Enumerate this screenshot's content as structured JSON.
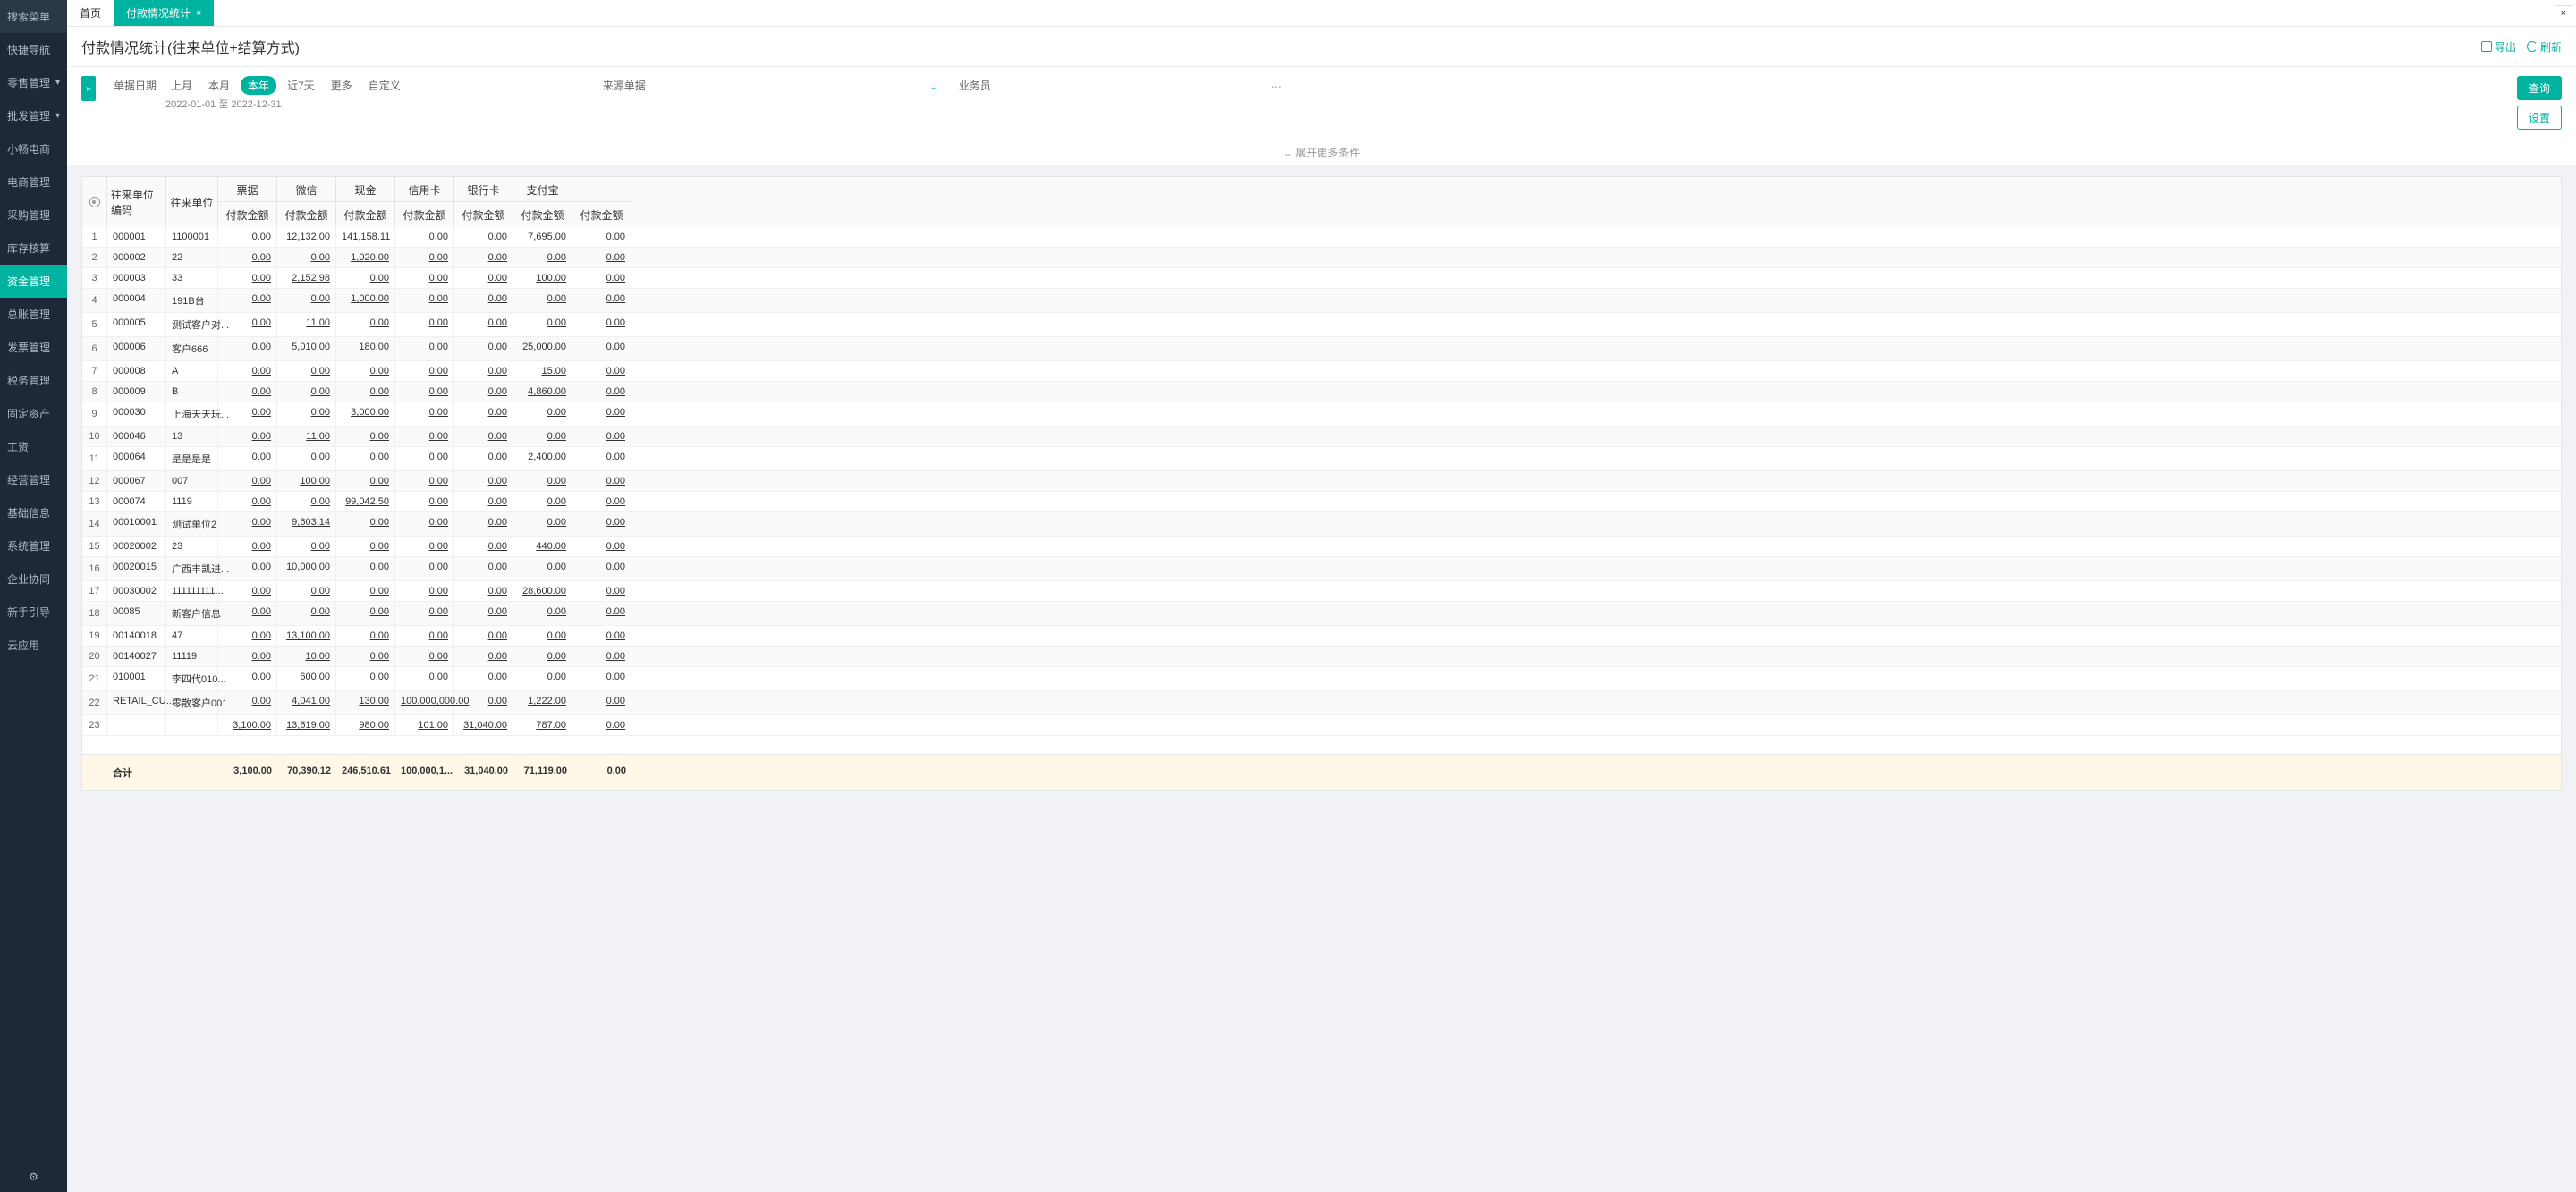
{
  "sidebar": {
    "items": [
      {
        "label": "搜索菜单",
        "expandable": false
      },
      {
        "label": "快捷导航",
        "expandable": false
      },
      {
        "label": "零售管理",
        "expandable": true
      },
      {
        "label": "批发管理",
        "expandable": true
      },
      {
        "label": "小畅电商",
        "expandable": false
      },
      {
        "label": "电商管理",
        "expandable": false
      },
      {
        "label": "采购管理",
        "expandable": false
      },
      {
        "label": "库存核算",
        "expandable": false
      },
      {
        "label": "资金管理",
        "expandable": false,
        "active": true
      },
      {
        "label": "总账管理",
        "expandable": false
      },
      {
        "label": "发票管理",
        "expandable": false
      },
      {
        "label": "税务管理",
        "expandable": false
      },
      {
        "label": "固定资产",
        "expandable": false
      },
      {
        "label": "工资",
        "expandable": false
      },
      {
        "label": "经营管理",
        "expandable": false
      },
      {
        "label": "基础信息",
        "expandable": false
      },
      {
        "label": "系统管理",
        "expandable": false
      },
      {
        "label": "企业协同",
        "expandable": false
      },
      {
        "label": "新手引导",
        "expandable": false
      },
      {
        "label": "云应用",
        "expandable": false
      }
    ]
  },
  "tabs": {
    "home": "首页",
    "active": "付款情况统计",
    "close_all": "×"
  },
  "page": {
    "title": "付款情况统计(往来单位+结算方式)",
    "export": "导出",
    "refresh": "刷新"
  },
  "filters": {
    "date_label": "单据日期",
    "presets": [
      "上月",
      "本月",
      "本年",
      "近7天",
      "更多",
      "自定义"
    ],
    "active_preset": "本年",
    "date_range": "2022-01-01 至 2022-12-31",
    "source_label": "来源单据",
    "salesperson_label": "业务员",
    "query": "查询",
    "settings": "设置",
    "expand_more": "展开更多条件"
  },
  "table": {
    "headers": {
      "code": "往来单位编码",
      "unit": "往来单位",
      "groups": [
        "票据",
        "微信",
        "现金",
        "信用卡",
        "银行卡",
        "支付宝",
        ""
      ],
      "sub": "付款金额"
    },
    "rows": [
      {
        "idx": "1",
        "code": "000001",
        "unit": "1100001",
        "v": [
          "0.00",
          "12,132.00",
          "141,158.11",
          "0.00",
          "0.00",
          "7,695.00",
          "0.00"
        ]
      },
      {
        "idx": "2",
        "code": "000002",
        "unit": "22",
        "v": [
          "0.00",
          "0.00",
          "1,020.00",
          "0.00",
          "0.00",
          "0.00",
          "0.00"
        ]
      },
      {
        "idx": "3",
        "code": "000003",
        "unit": "33",
        "v": [
          "0.00",
          "2,152.98",
          "0.00",
          "0.00",
          "0.00",
          "100.00",
          "0.00"
        ]
      },
      {
        "idx": "4",
        "code": "000004",
        "unit": "191B台",
        "v": [
          "0.00",
          "0.00",
          "1,000.00",
          "0.00",
          "0.00",
          "0.00",
          "0.00"
        ]
      },
      {
        "idx": "5",
        "code": "000005",
        "unit": "测试客户对...",
        "v": [
          "0.00",
          "11.00",
          "0.00",
          "0.00",
          "0.00",
          "0.00",
          "0.00"
        ]
      },
      {
        "idx": "6",
        "code": "000006",
        "unit": "客户666",
        "v": [
          "0.00",
          "5,010.00",
          "180.00",
          "0.00",
          "0.00",
          "25,000.00",
          "0.00"
        ]
      },
      {
        "idx": "7",
        "code": "000008",
        "unit": "A",
        "v": [
          "0.00",
          "0.00",
          "0.00",
          "0.00",
          "0.00",
          "15.00",
          "0.00"
        ]
      },
      {
        "idx": "8",
        "code": "000009",
        "unit": "B",
        "v": [
          "0.00",
          "0.00",
          "0.00",
          "0.00",
          "0.00",
          "4,860.00",
          "0.00"
        ]
      },
      {
        "idx": "9",
        "code": "000030",
        "unit": "上海天天玩...",
        "v": [
          "0.00",
          "0.00",
          "3,000.00",
          "0.00",
          "0.00",
          "0.00",
          "0.00"
        ]
      },
      {
        "idx": "10",
        "code": "000046",
        "unit": "13",
        "v": [
          "0.00",
          "11.00",
          "0.00",
          "0.00",
          "0.00",
          "0.00",
          "0.00"
        ]
      },
      {
        "idx": "11",
        "code": "000064",
        "unit": "是是是是",
        "v": [
          "0.00",
          "0.00",
          "0.00",
          "0.00",
          "0.00",
          "2,400.00",
          "0.00"
        ]
      },
      {
        "idx": "12",
        "code": "000067",
        "unit": "007",
        "v": [
          "0.00",
          "100.00",
          "0.00",
          "0.00",
          "0.00",
          "0.00",
          "0.00"
        ]
      },
      {
        "idx": "13",
        "code": "000074",
        "unit": "1119",
        "v": [
          "0.00",
          "0.00",
          "99,042.50",
          "0.00",
          "0.00",
          "0.00",
          "0.00"
        ]
      },
      {
        "idx": "14",
        "code": "00010001",
        "unit": "测试单位2",
        "v": [
          "0.00",
          "9,603.14",
          "0.00",
          "0.00",
          "0.00",
          "0.00",
          "0.00"
        ]
      },
      {
        "idx": "15",
        "code": "00020002",
        "unit": "23",
        "v": [
          "0.00",
          "0.00",
          "0.00",
          "0.00",
          "0.00",
          "440.00",
          "0.00"
        ]
      },
      {
        "idx": "16",
        "code": "00020015",
        "unit": "广西丰凯进...",
        "v": [
          "0.00",
          "10,000.00",
          "0.00",
          "0.00",
          "0.00",
          "0.00",
          "0.00"
        ]
      },
      {
        "idx": "17",
        "code": "00030002",
        "unit": "111111111...",
        "v": [
          "0.00",
          "0.00",
          "0.00",
          "0.00",
          "0.00",
          "28,600.00",
          "0.00"
        ]
      },
      {
        "idx": "18",
        "code": "00085",
        "unit": "新客户信息",
        "v": [
          "0.00",
          "0.00",
          "0.00",
          "0.00",
          "0.00",
          "0.00",
          "0.00"
        ]
      },
      {
        "idx": "19",
        "code": "00140018",
        "unit": "47",
        "v": [
          "0.00",
          "13,100.00",
          "0.00",
          "0.00",
          "0.00",
          "0.00",
          "0.00"
        ]
      },
      {
        "idx": "20",
        "code": "00140027",
        "unit": "11119",
        "v": [
          "0.00",
          "10.00",
          "0.00",
          "0.00",
          "0.00",
          "0.00",
          "0.00"
        ]
      },
      {
        "idx": "21",
        "code": "010001",
        "unit": "李四代010...",
        "v": [
          "0.00",
          "600.00",
          "0.00",
          "0.00",
          "0.00",
          "0.00",
          "0.00"
        ]
      },
      {
        "idx": "22",
        "code": "RETAIL_CU...",
        "unit": "零散客户001",
        "v": [
          "0.00",
          "4,041.00",
          "130.00",
          "100,000,000.00",
          "0.00",
          "1,222.00",
          "0.00"
        ]
      },
      {
        "idx": "23",
        "code": "",
        "unit": "",
        "v": [
          "3,100.00",
          "13,619.00",
          "980.00",
          "101.00",
          "31,040.00",
          "787.00",
          "0.00"
        ]
      }
    ],
    "total": {
      "label": "合计",
      "v": [
        "3,100.00",
        "70,390.12",
        "246,510.61",
        "100,000,1...",
        "31,040.00",
        "71,119.00",
        "0.00"
      ]
    }
  }
}
